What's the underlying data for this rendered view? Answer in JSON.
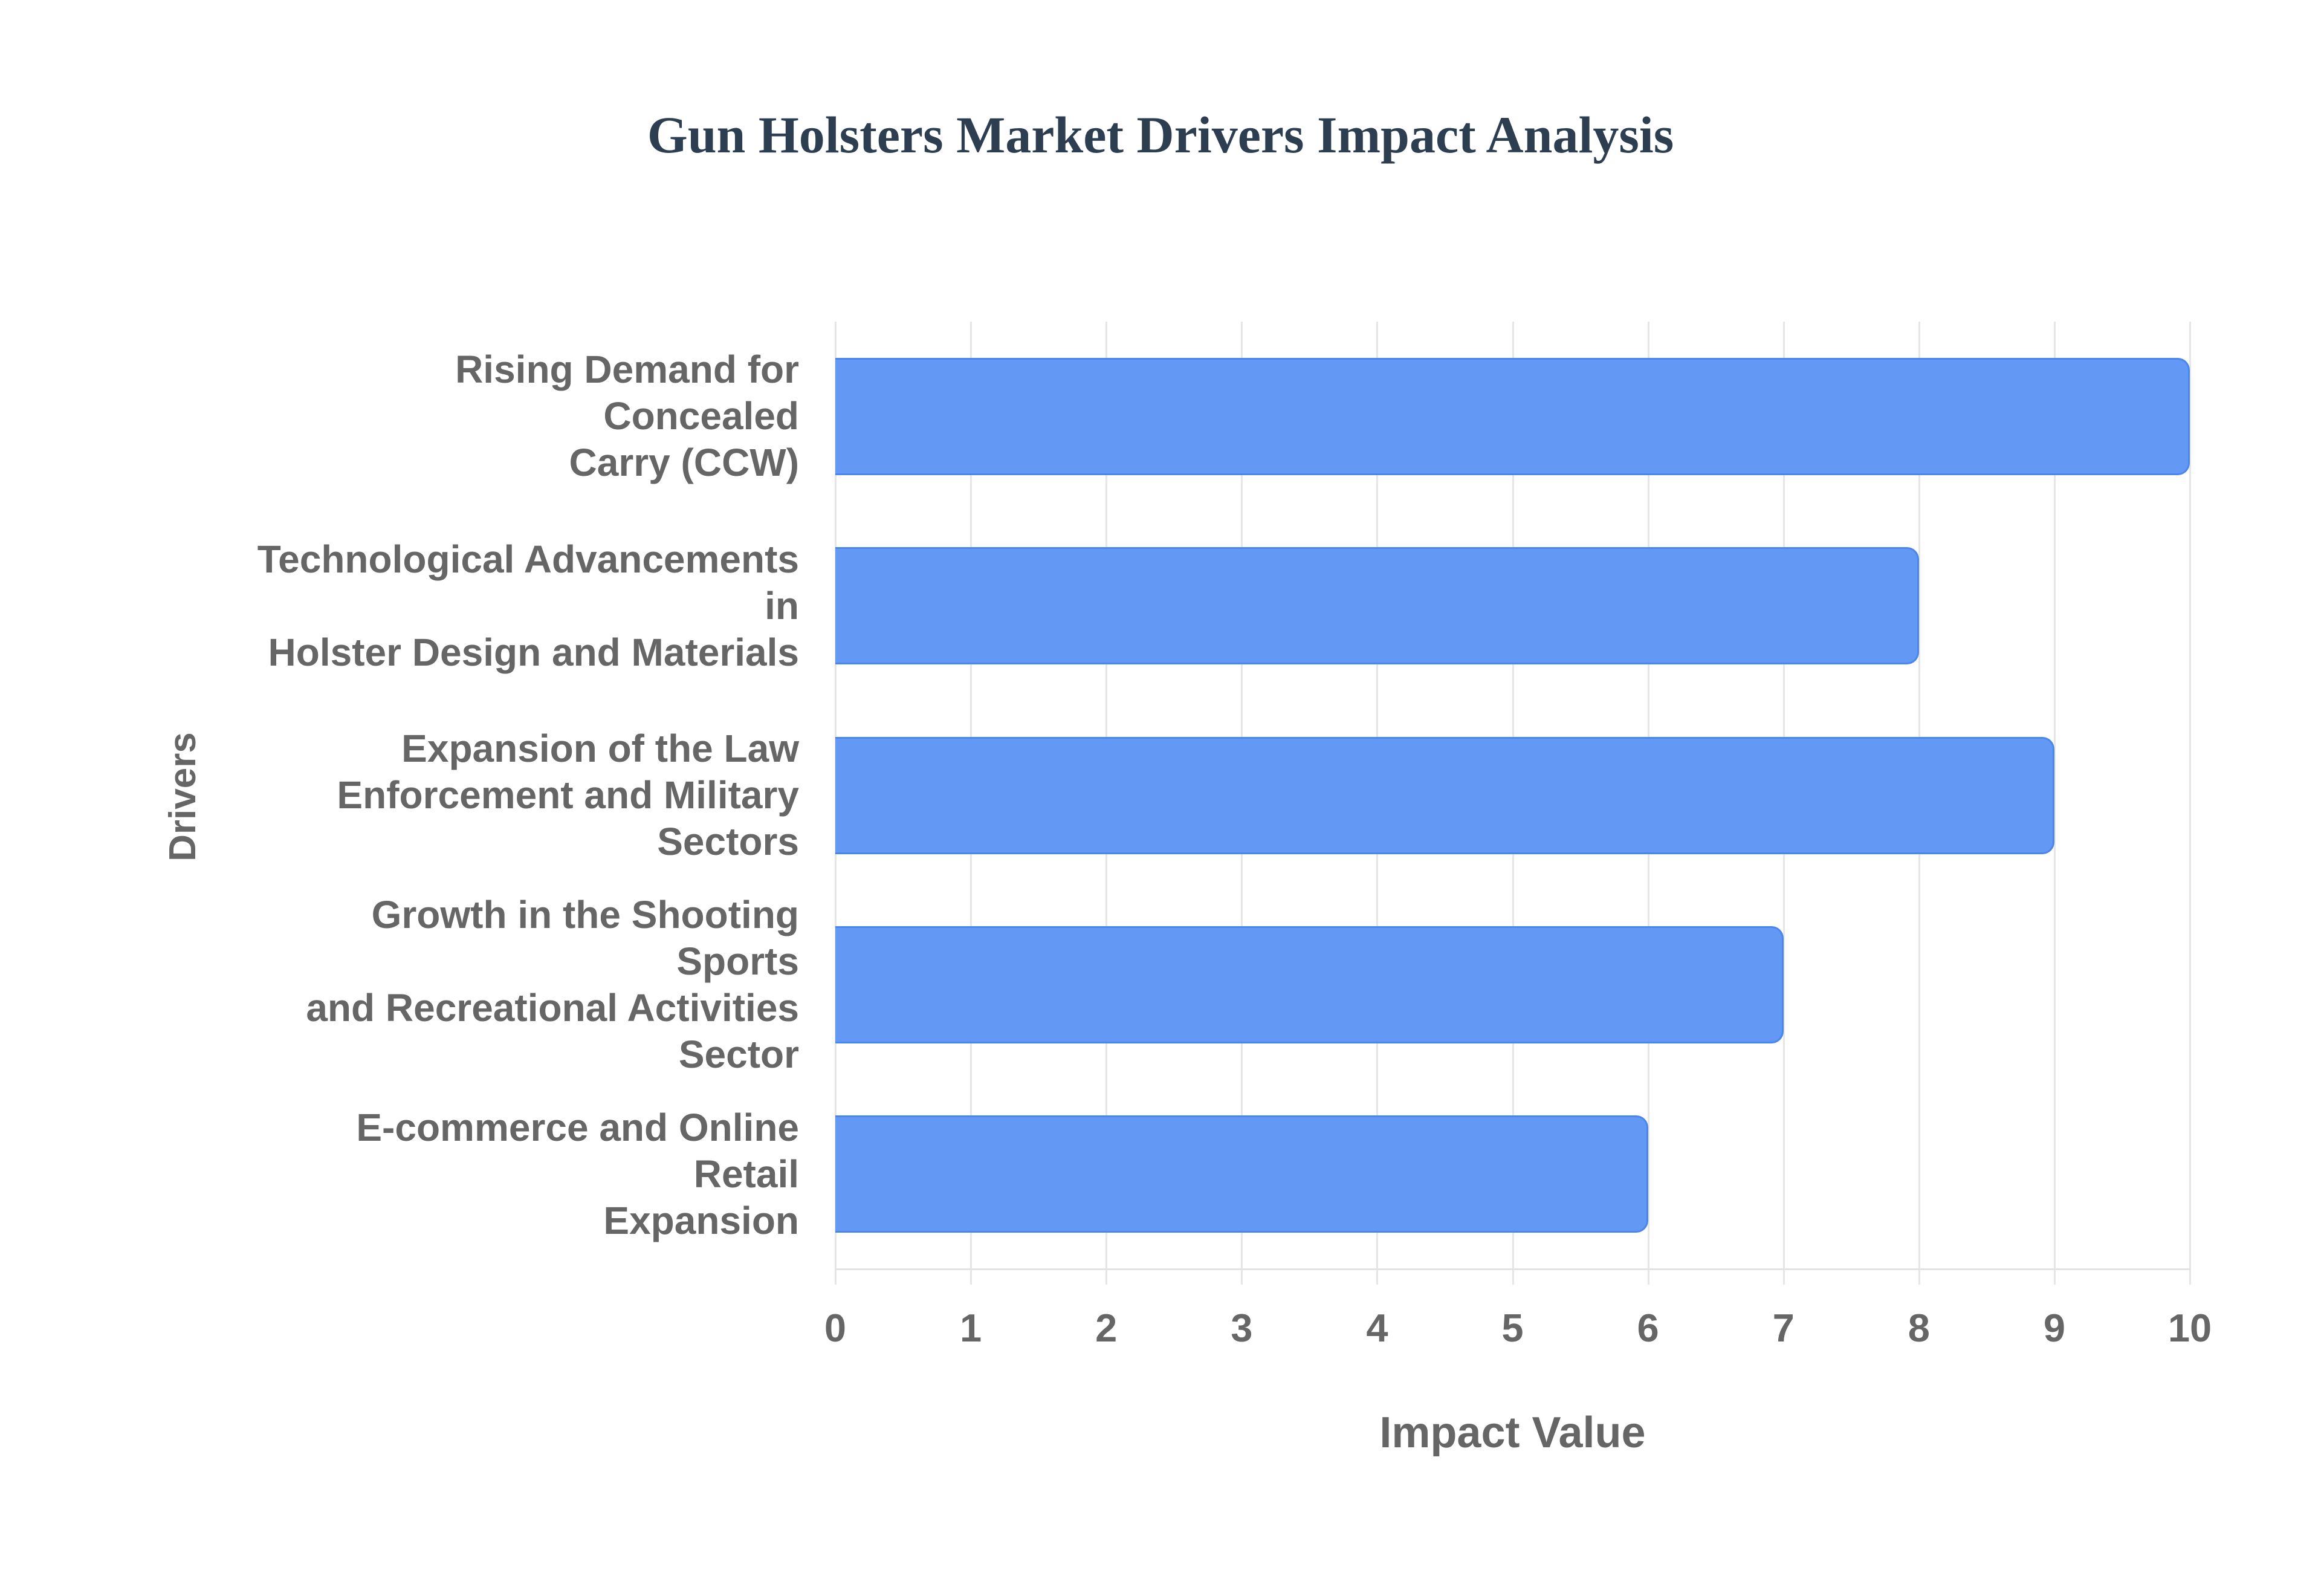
{
  "chart_data": {
    "type": "bar",
    "orientation": "horizontal",
    "title": "Gun Holsters Market Drivers Impact Analysis",
    "xlabel": "Impact Value",
    "ylabel": "Drivers",
    "xlim": [
      0,
      10
    ],
    "x_ticks": [
      "0",
      "1",
      "2",
      "3",
      "4",
      "5",
      "6",
      "7",
      "8",
      "9",
      "10"
    ],
    "grid": true,
    "legend": null,
    "categories": [
      "Rising Demand for Concealed Carry (CCW)",
      "Technological Advancements in Holster Design and Materials",
      "Expansion of the Law Enforcement and Military Sectors",
      "Growth in the Shooting Sports and Recreational Activities Sector",
      "E-commerce and Online Retail Expansion"
    ],
    "values": [
      10,
      8,
      9,
      7,
      6
    ],
    "colors": {
      "bar_fill": "#6399f5",
      "bar_border": "#4a86ef",
      "title": "#2c3e50",
      "text": "#666666",
      "grid": "#e6e6e6"
    }
  },
  "labels": {
    "title": "Gun Holsters Market Drivers Impact Analysis",
    "xaxis_title": "Impact Value",
    "yaxis_title": "Drivers",
    "bars": [
      {
        "lines": [
          "Rising Demand for Concealed",
          "Carry (CCW)"
        ],
        "value": 10
      },
      {
        "lines": [
          "Technological Advancements in",
          "Holster Design and Materials"
        ],
        "value": 8
      },
      {
        "lines": [
          "Expansion of the Law",
          "Enforcement and Military",
          "Sectors"
        ],
        "value": 9
      },
      {
        "lines": [
          "Growth in the Shooting Sports",
          "and Recreational Activities",
          "Sector"
        ],
        "value": 7
      },
      {
        "lines": [
          "E-commerce and Online Retail",
          "Expansion"
        ],
        "value": 6
      }
    ],
    "ticks": [
      "0",
      "1",
      "2",
      "3",
      "4",
      "5",
      "6",
      "7",
      "8",
      "9",
      "10"
    ]
  }
}
